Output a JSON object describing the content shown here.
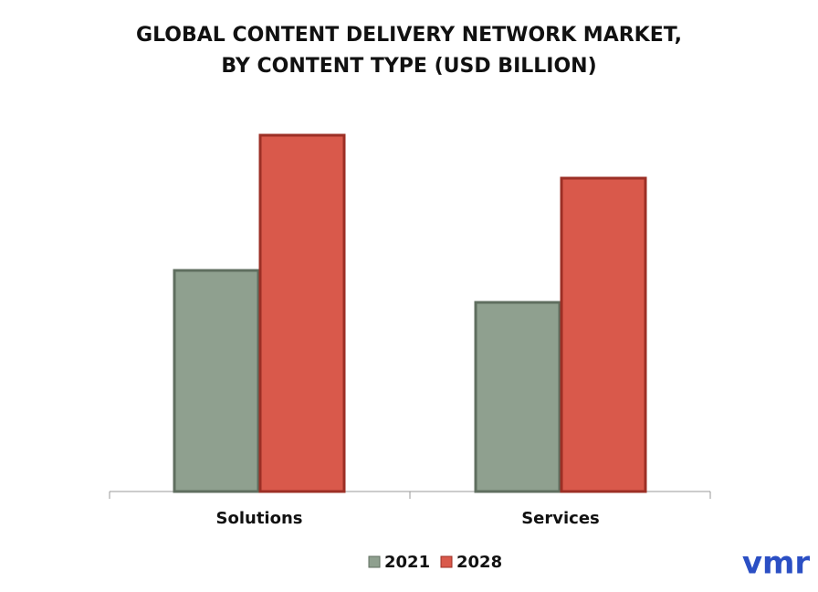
{
  "chart_data": {
    "type": "bar",
    "title": "GLOBAL CONTENT DELIVERY NETWORK MARKET, BY CONTENT TYPE (USD BILLION)",
    "categories": [
      "Solutions",
      "Services"
    ],
    "series": [
      {
        "name": "2021",
        "color": "#8fa08f",
        "values": [
          242,
          207
        ]
      },
      {
        "name": "2028",
        "color": "#d9594b",
        "values": [
          390,
          343
        ]
      }
    ],
    "ylim": [
      0,
      400
    ],
    "logo": "vmr"
  }
}
